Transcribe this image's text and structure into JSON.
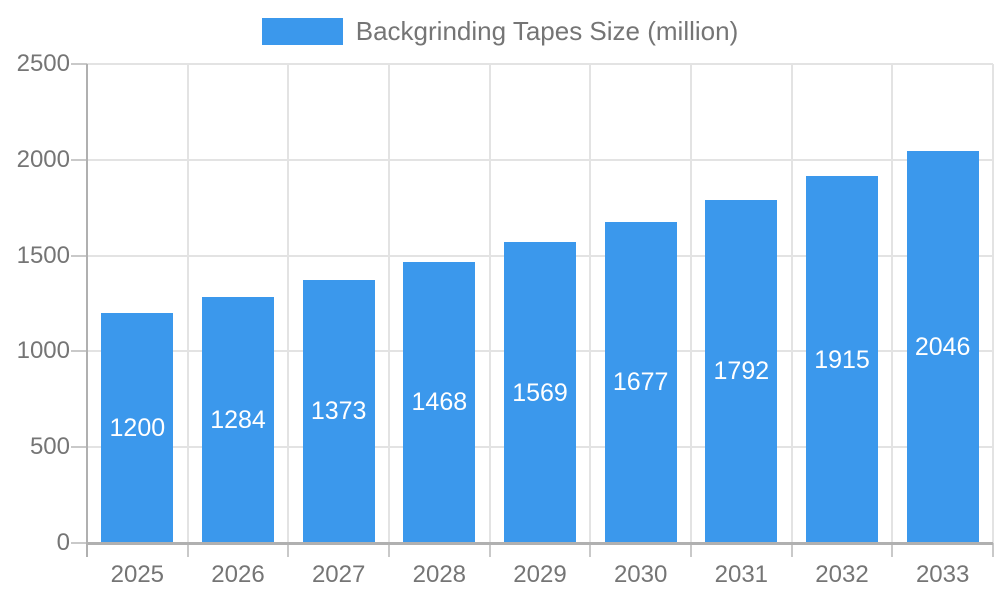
{
  "colors": {
    "bar": "#3B98EC",
    "bar_label": "#ffffff",
    "axis_text": "#757575",
    "grid_line": "#e3e3e3",
    "tick_line": "#c9c9c9",
    "axis_line": "#b0b0b0",
    "background": "#ffffff"
  },
  "legend": {
    "position": "top",
    "label": "Backgrinding Tapes Size (million)"
  },
  "chart_data": {
    "type": "bar",
    "title": "Backgrinding Tapes Size (million)",
    "categories": [
      "2025",
      "2026",
      "2027",
      "2028",
      "2029",
      "2030",
      "2031",
      "2032",
      "2033"
    ],
    "series": [
      {
        "name": "Backgrinding Tapes Size (million)",
        "values": [
          1200,
          1284,
          1373,
          1468,
          1569,
          1677,
          1792,
          1915,
          2046
        ]
      }
    ],
    "bar_labels_shown": true,
    "xlabel": "",
    "ylabel": "",
    "ylim": [
      0,
      2500
    ],
    "yticks": [
      0,
      500,
      1000,
      1500,
      2000,
      2500
    ],
    "grid": true,
    "legend_position": "top"
  }
}
